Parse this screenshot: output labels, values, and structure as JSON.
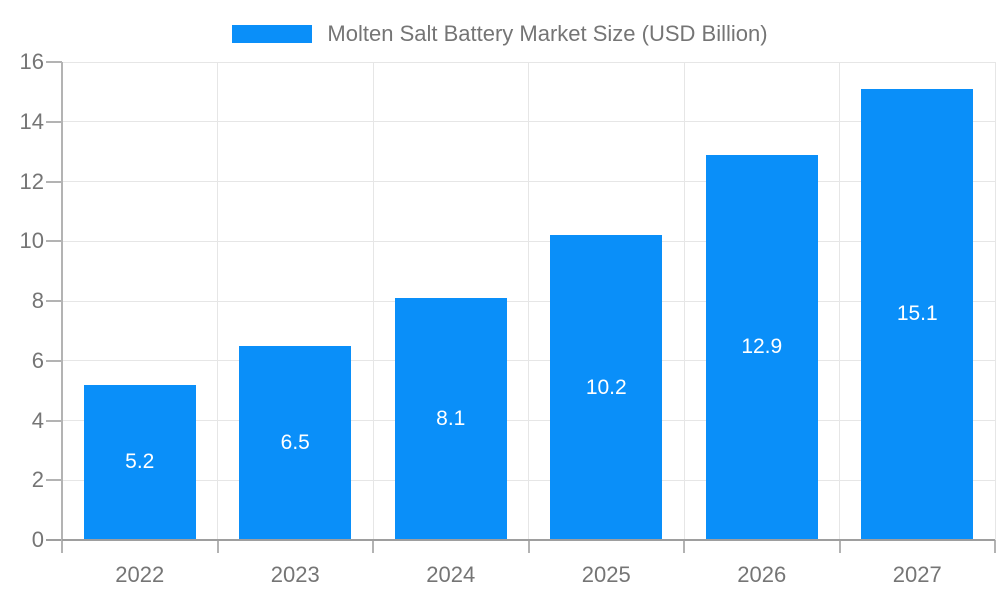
{
  "chart_data": {
    "type": "bar",
    "title": "Molten Salt Battery Market Size (USD Billion)",
    "legend": {
      "position": "top",
      "label": "Molten Salt Battery Market Size (USD Billion)"
    },
    "categories": [
      "2022",
      "2023",
      "2024",
      "2025",
      "2026",
      "2027"
    ],
    "values": [
      5.2,
      6.5,
      8.1,
      10.2,
      12.9,
      15.1
    ],
    "data_labels": [
      "5.2",
      "6.5",
      "8.1",
      "10.2",
      "12.9",
      "15.1"
    ],
    "xlabel": "",
    "ylabel": "",
    "ylim": [
      0,
      16
    ],
    "yticks": [
      0,
      2,
      4,
      6,
      8,
      10,
      12,
      14,
      16
    ],
    "grid": true,
    "colors": {
      "bar": "#0A8FF9",
      "data_label": "#FFFFFF",
      "axis_text": "#757575",
      "gridline": "#E6E6E6",
      "baseline": "#9E9E9E",
      "axis_line": "#B3B3B3",
      "background": "#FFFFFF"
    }
  }
}
